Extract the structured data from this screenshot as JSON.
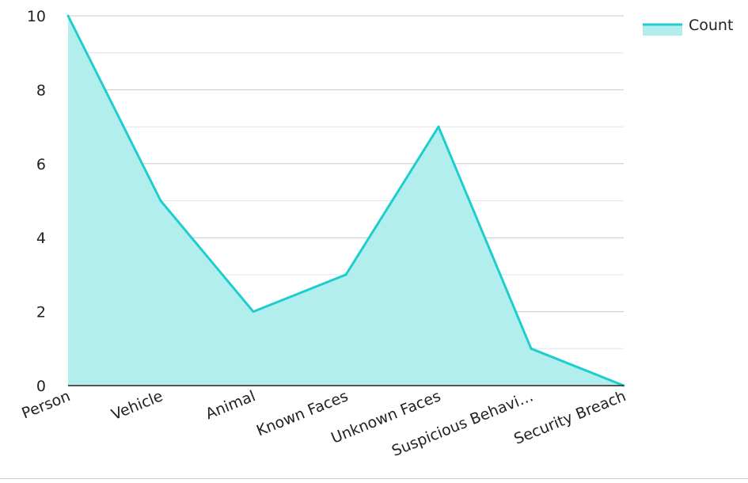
{
  "chart_data": {
    "type": "area",
    "categories": [
      "Person",
      "Vehicle",
      "Animal",
      "Known Faces",
      "Unknown Faces",
      "Suspicious Behavi…",
      "Security Breach"
    ],
    "series": [
      {
        "name": "Count",
        "values": [
          10,
          5,
          2,
          3,
          7,
          1,
          0
        ]
      }
    ],
    "y_ticks": [
      0,
      2,
      4,
      6,
      8,
      10
    ],
    "ylim": [
      0,
      10
    ],
    "grid": true,
    "legend": "top-right",
    "colors": {
      "line": "#1ecece",
      "fill": "#b2eeed",
      "grid": "#c8c8c8",
      "axis": "#222222"
    }
  }
}
